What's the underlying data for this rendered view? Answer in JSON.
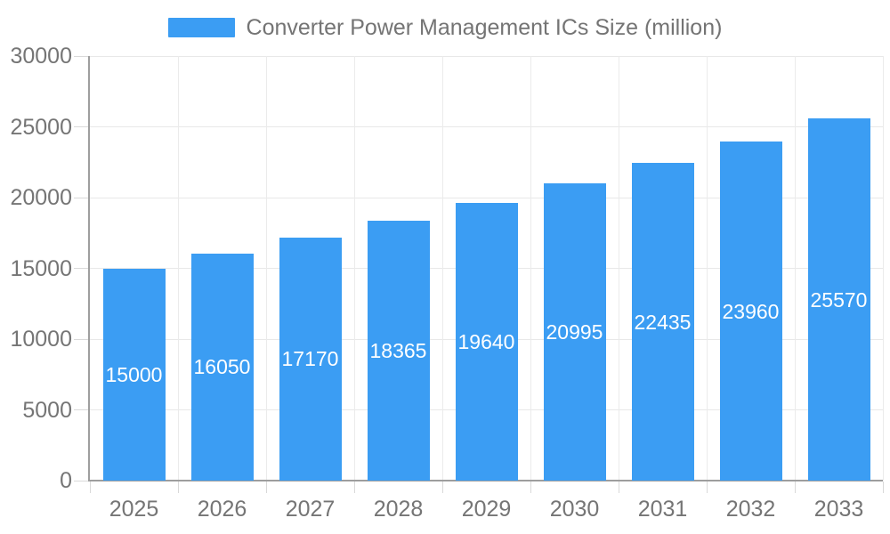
{
  "legend": {
    "label": "Converter Power Management ICs Size (million)",
    "position": "top-center"
  },
  "chart_data": {
    "type": "bar",
    "title": "Converter Power Management ICs Size (million)",
    "series_name": "Converter Power Management ICs Size (million)",
    "categories": [
      "2025",
      "2026",
      "2027",
      "2028",
      "2029",
      "2030",
      "2031",
      "2032",
      "2033"
    ],
    "values": [
      15000,
      16050,
      17170,
      18365,
      19640,
      20995,
      22435,
      23960,
      25570
    ],
    "value_labels": [
      "15000",
      "16050",
      "17170",
      "18365",
      "19640",
      "20995",
      "22435",
      "23960",
      "25570"
    ],
    "value_label_position": "inside-center",
    "xlabel": "",
    "ylabel": "",
    "ylim": [
      0,
      30000
    ],
    "ytick_step": 5000,
    "yticks": [
      0,
      5000,
      10000,
      15000,
      20000,
      25000,
      30000
    ],
    "grid": true,
    "legend_position": "top",
    "colors": {
      "bar": "#3B9DF3",
      "value_label": "#FFFFFF",
      "axis_line": "#9E9E9E",
      "gridline": "#E8E8E8",
      "tick": "#D9D9D9",
      "axis_text": "#757575",
      "legend_text": "#747474",
      "background": "#FFFFFF"
    }
  }
}
